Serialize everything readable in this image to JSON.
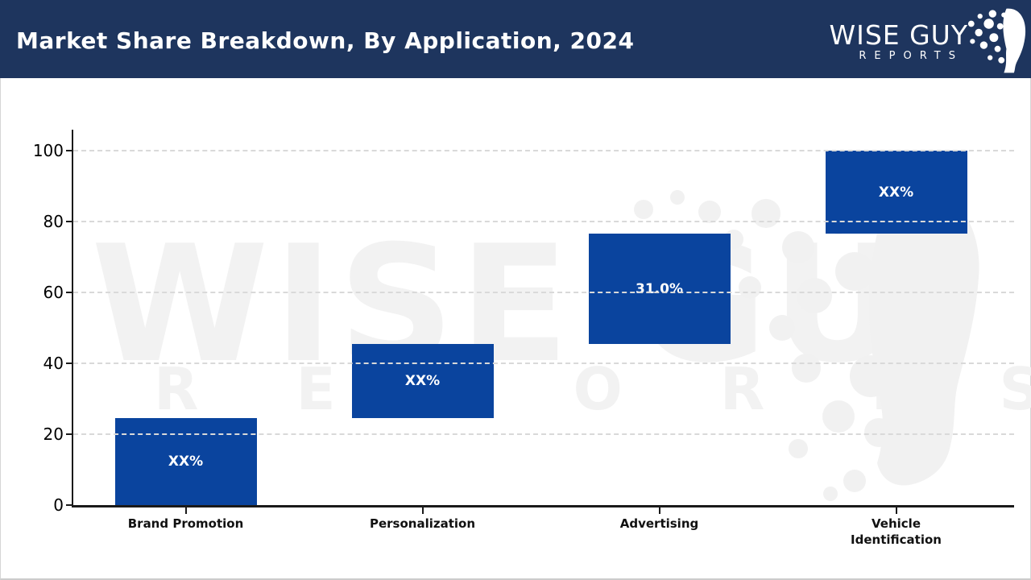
{
  "header": {
    "title": "Market Share Breakdown, By Application, 2024",
    "logo": {
      "name": "WISE GUY",
      "sub": "REPORTS"
    }
  },
  "watermark": {
    "line1": "WISE GU",
    "line2": "R E P O R T S"
  },
  "icons": {
    "logo_face": "wiseguy-face-icon",
    "watermark_face": "wiseguy-face-watermark-icon"
  },
  "colors": {
    "header_bg": "#1e355e",
    "bar_blue": "#0a449e",
    "bar_label": "#ffffff",
    "gridline": "#d9d9d9",
    "axis": "#1a1a1a",
    "watermark": "#f2f2f2"
  },
  "chart_data": {
    "type": "bar",
    "subtype": "waterfall",
    "title": "Market Share Breakdown, By Application, 2024",
    "categories": [
      "Brand Promotion",
      "Personalization",
      "Advertising",
      "Vehicle Identification"
    ],
    "tick_labels": [
      "Brand Promotion",
      "Personalization",
      "Advertising",
      "Vehicle\nIdentification"
    ],
    "segments": [
      {
        "category": "Brand Promotion",
        "start": 0,
        "end": 24.5,
        "value": 24.5,
        "label": "XX%"
      },
      {
        "category": "Personalization",
        "start": 24.5,
        "end": 45.5,
        "value": 21.0,
        "label": "XX%"
      },
      {
        "category": "Advertising",
        "start": 45.5,
        "end": 76.5,
        "value": 31.0,
        "label": "31.0%"
      },
      {
        "category": "Vehicle Identification",
        "start": 76.5,
        "end": 100,
        "value": 23.5,
        "label": "XX%"
      }
    ],
    "xlabel": "",
    "ylabel": "",
    "ylim": [
      0,
      100
    ],
    "yticks": [
      0,
      20,
      40,
      60,
      80,
      100
    ],
    "grid": "horizontal dashed, drawn above bars",
    "legend": "none",
    "bar_color": "#0a449e",
    "label_color": "#ffffff"
  }
}
